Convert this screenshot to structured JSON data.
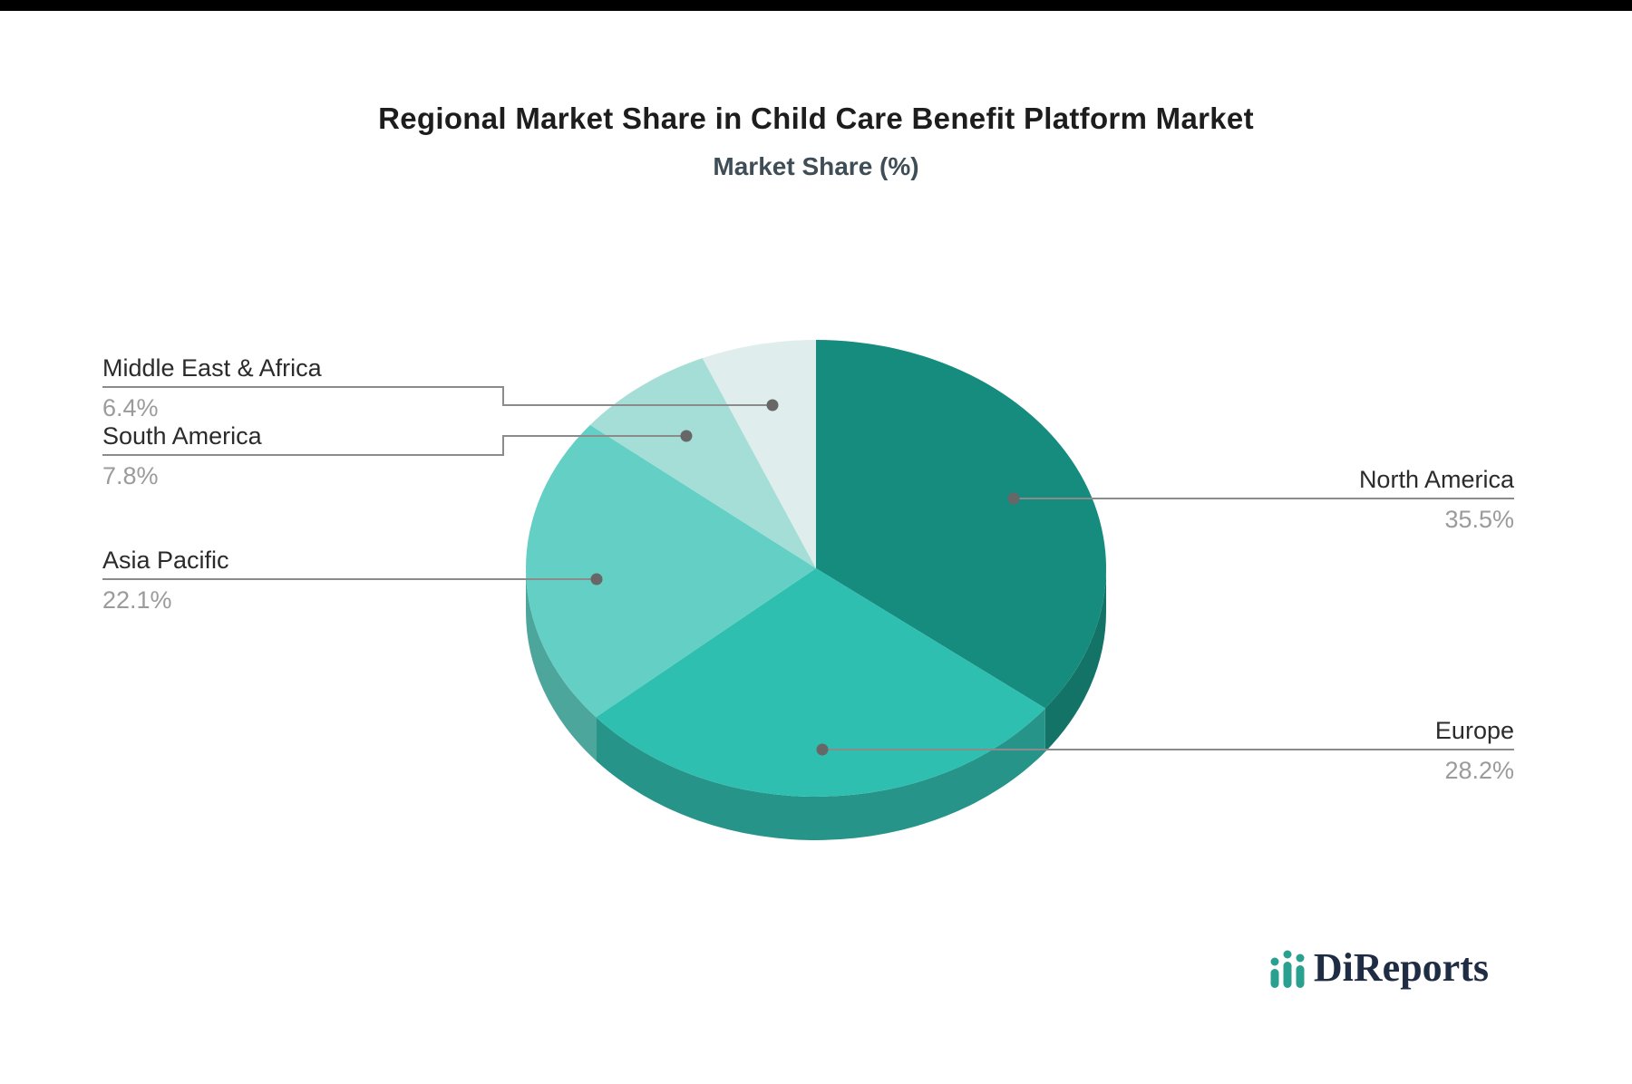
{
  "page": {
    "background": "#ffffff",
    "top_bar_color": "#000000"
  },
  "title": "Regional Market Share in Child Care Benefit Platform Market",
  "subtitle": "Market Share (%)",
  "logo": {
    "text": "DiReports",
    "icon": "bar-chart-icon",
    "icon_color": "#2aa091",
    "text_color": "#1e2c44"
  },
  "leader_style": {
    "line_color": "#8b8b8b",
    "dot_color": "#676767"
  },
  "chart_data": {
    "type": "pie",
    "title": "Regional Market Share in Child Care Benefit Platform Market",
    "subtitle": "Market Share (%)",
    "unit": "%",
    "style": "3d-pie",
    "start_angle_deg": 0,
    "direction": "clockwise",
    "legend_position": "none",
    "labeling": "callouts-with-leader-lines",
    "slices": [
      {
        "label": "North America",
        "value": 35.5,
        "value_label": "35.5%",
        "color": "#168c7f",
        "side_color": "#137366"
      },
      {
        "label": "Europe",
        "value": 28.2,
        "value_label": "28.2%",
        "color": "#2fbfb1",
        "side_color": "#27948a"
      },
      {
        "label": "Asia Pacific",
        "value": 22.1,
        "value_label": "22.1%",
        "color": "#64cfc4",
        "side_color": "#4da69b"
      },
      {
        "label": "South America",
        "value": 7.8,
        "value_label": "7.8%",
        "color": "#a5ded7",
        "side_color": "#7fbcb4"
      },
      {
        "label": "Middle East & Africa",
        "value": 6.4,
        "value_label": "6.4%",
        "color": "#dfeeec",
        "side_color": "#b8d2ce"
      }
    ]
  }
}
